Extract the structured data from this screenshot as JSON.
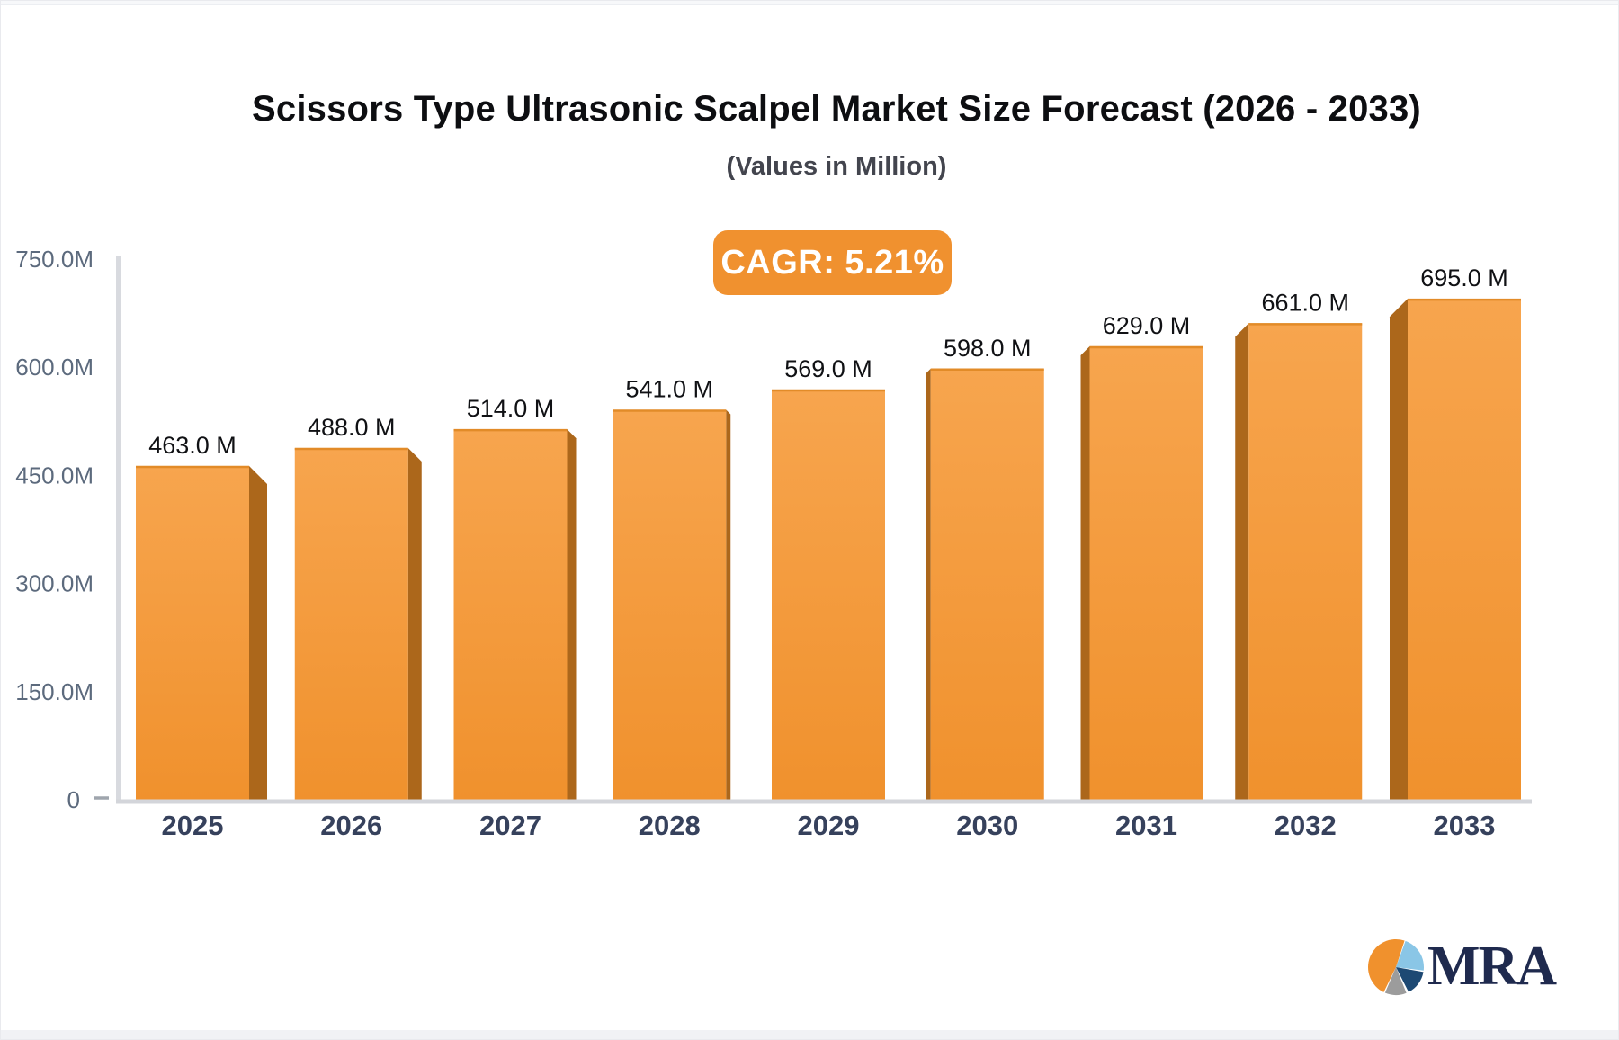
{
  "chart_data": {
    "type": "bar",
    "title": "Scissors Type Ultrasonic Scalpel Market Size Forecast (2026 - 2033)",
    "subtitle": "(Values in Million)",
    "annotation": "CAGR: 5.21%",
    "categories": [
      "2025",
      "2026",
      "2027",
      "2028",
      "2029",
      "2030",
      "2031",
      "2032",
      "2033"
    ],
    "values": [
      463,
      488,
      514,
      541,
      569,
      598,
      629,
      661,
      695
    ],
    "value_labels": [
      "463.0 M",
      "488.0 M",
      "514.0 M",
      "541.0 M",
      "569.0 M",
      "598.0 M",
      "629.0 M",
      "661.0 M",
      "695.0 M"
    ],
    "y_ticks": [
      {
        "label": "750.0M",
        "value": 750
      },
      {
        "label": "600.0M",
        "value": 600
      },
      {
        "label": "450.0M",
        "value": 450
      },
      {
        "label": "300.0M",
        "value": 300
      },
      {
        "label": "150.0M",
        "value": 150
      },
      {
        "label": "0",
        "value": 0
      }
    ],
    "ylim": [
      0,
      750
    ],
    "xlabel": "",
    "ylabel": "",
    "grid": false,
    "legend": "none",
    "colors": {
      "bar_face_top": "#F7A54E",
      "bar_face_bottom": "#F0912D",
      "bar_side": "#AC671B",
      "bar_top_edge": "#E28B28"
    }
  },
  "colors": {
    "accent_orange": "#F0912F",
    "axis_line": "#D8DADF",
    "baseline": "#D3D5DA",
    "zero_tick_dash": "#9FA5AD",
    "y_label": "#5C6A7D",
    "x_label": "#36415C"
  },
  "logo": {
    "text": "MRA",
    "text_color": "#1F2A4E",
    "pie_icon": "pie-chart-icon",
    "pie_slices": [
      {
        "name": "orange",
        "color": "#F0912D",
        "start": 206,
        "end": 378
      },
      {
        "name": "light-blue",
        "color": "#8AC6E6",
        "start": 20,
        "end": 97
      },
      {
        "name": "navy",
        "color": "#1D4973",
        "start": 100,
        "end": 153
      },
      {
        "name": "gray",
        "color": "#9C9C9C",
        "start": 158,
        "end": 203
      }
    ]
  }
}
